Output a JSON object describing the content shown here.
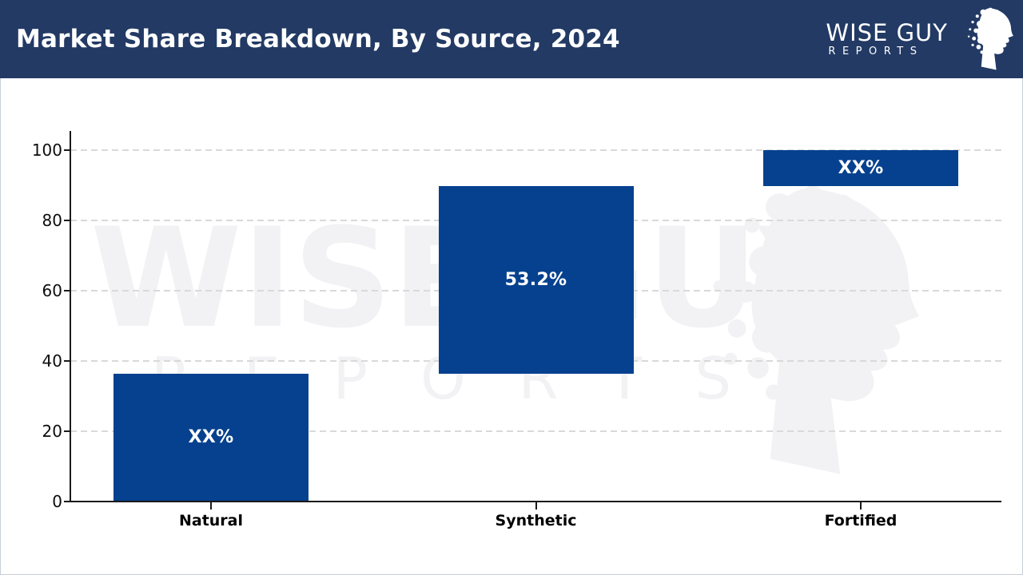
{
  "header": {
    "title": "Market Share Breakdown, By Source, 2024",
    "logo": {
      "line1": "WISE GUY",
      "line2": "REPORTS"
    }
  },
  "watermark": {
    "line1": "WISE GUY",
    "line2": "REPORTS"
  },
  "colors": {
    "header_bg": "#223a64",
    "bar": "#06418f",
    "bar_label": "#ffffff",
    "grid": "#d9d9d9",
    "axis": "#1a1a1a",
    "watermark": "#f2f2f4"
  },
  "chart_data": {
    "type": "bar",
    "subtype": "waterfall",
    "title": "Market Share Breakdown, By Source, 2024",
    "categories": [
      "Natural",
      "Synthetic",
      "Fortified"
    ],
    "series": [
      {
        "name": "Market Share (%)",
        "segments": [
          {
            "category": "Natural",
            "start": 0,
            "end": 36.4,
            "label": "XX%"
          },
          {
            "category": "Synthetic",
            "start": 36.4,
            "end": 89.6,
            "label": "53.2%"
          },
          {
            "category": "Fortified",
            "start": 89.6,
            "end": 100,
            "label": "XX%"
          }
        ]
      }
    ],
    "ylim": [
      0,
      105
    ],
    "yticks": [
      0,
      20,
      40,
      60,
      80,
      100
    ],
    "grid": "horizontal-dashed",
    "legend_position": "none"
  }
}
